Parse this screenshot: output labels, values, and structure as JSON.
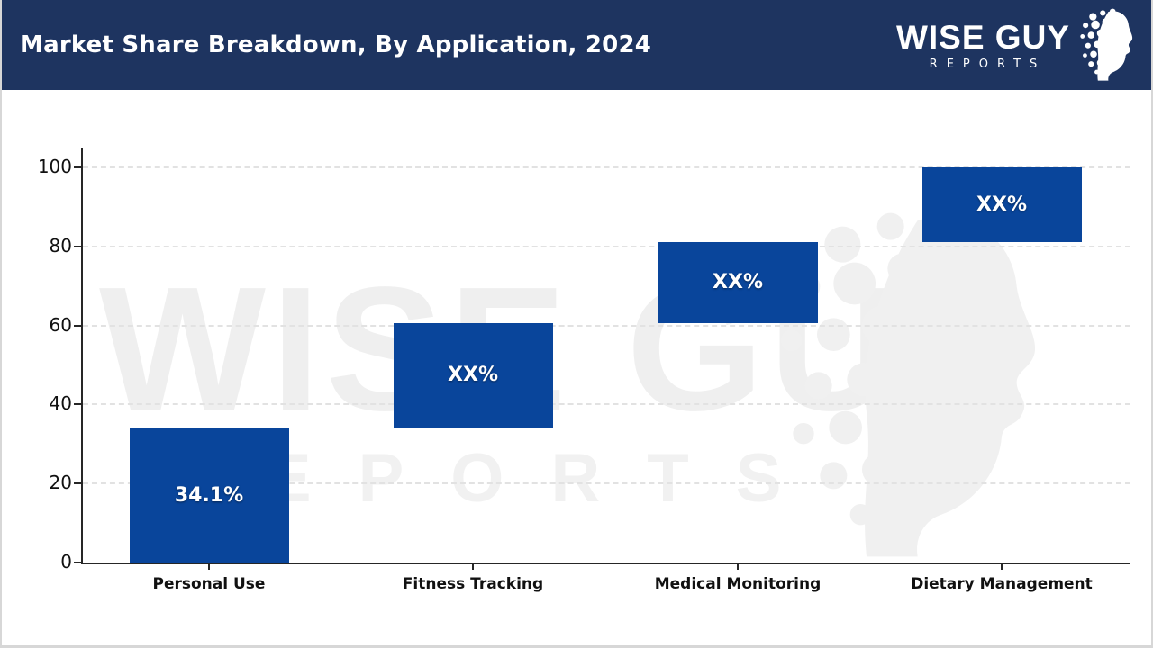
{
  "header": {
    "title": "Market Share Breakdown, By Application, 2024",
    "bg_color": "#1e3460",
    "logo": {
      "line1": "WISE GUY",
      "line2": "REPORTS"
    }
  },
  "watermark": {
    "line1": "WISE GUY",
    "line2": "REPORTS"
  },
  "chart_data": {
    "type": "bar",
    "subtype": "waterfall",
    "title": "Market Share Breakdown, By Application, 2024",
    "categories": [
      "Personal Use",
      "Fitness Tracking",
      "Medical Monitoring",
      "Dietary Management"
    ],
    "segments": [
      {
        "category": "Personal Use",
        "start": 0,
        "end": 34.1,
        "label": "34.1%"
      },
      {
        "category": "Fitness Tracking",
        "start": 34.1,
        "end": 60.7,
        "label": "XX%"
      },
      {
        "category": "Medical Monitoring",
        "start": 60.7,
        "end": 81.2,
        "label": "XX%"
      },
      {
        "category": "Dietary Management",
        "start": 81.2,
        "end": 100,
        "label": "XX%"
      }
    ],
    "xlabel": "",
    "ylabel": "",
    "ylim": [
      0,
      100
    ],
    "yticks": [
      0,
      20,
      40,
      60,
      80,
      100
    ],
    "grid": "horizontal-dashed",
    "legend": "none",
    "bar_color": "#09459b",
    "bar_label_color": "#ffffff",
    "axis_color": "#262626",
    "gridline_color": "#e2e2e2"
  }
}
